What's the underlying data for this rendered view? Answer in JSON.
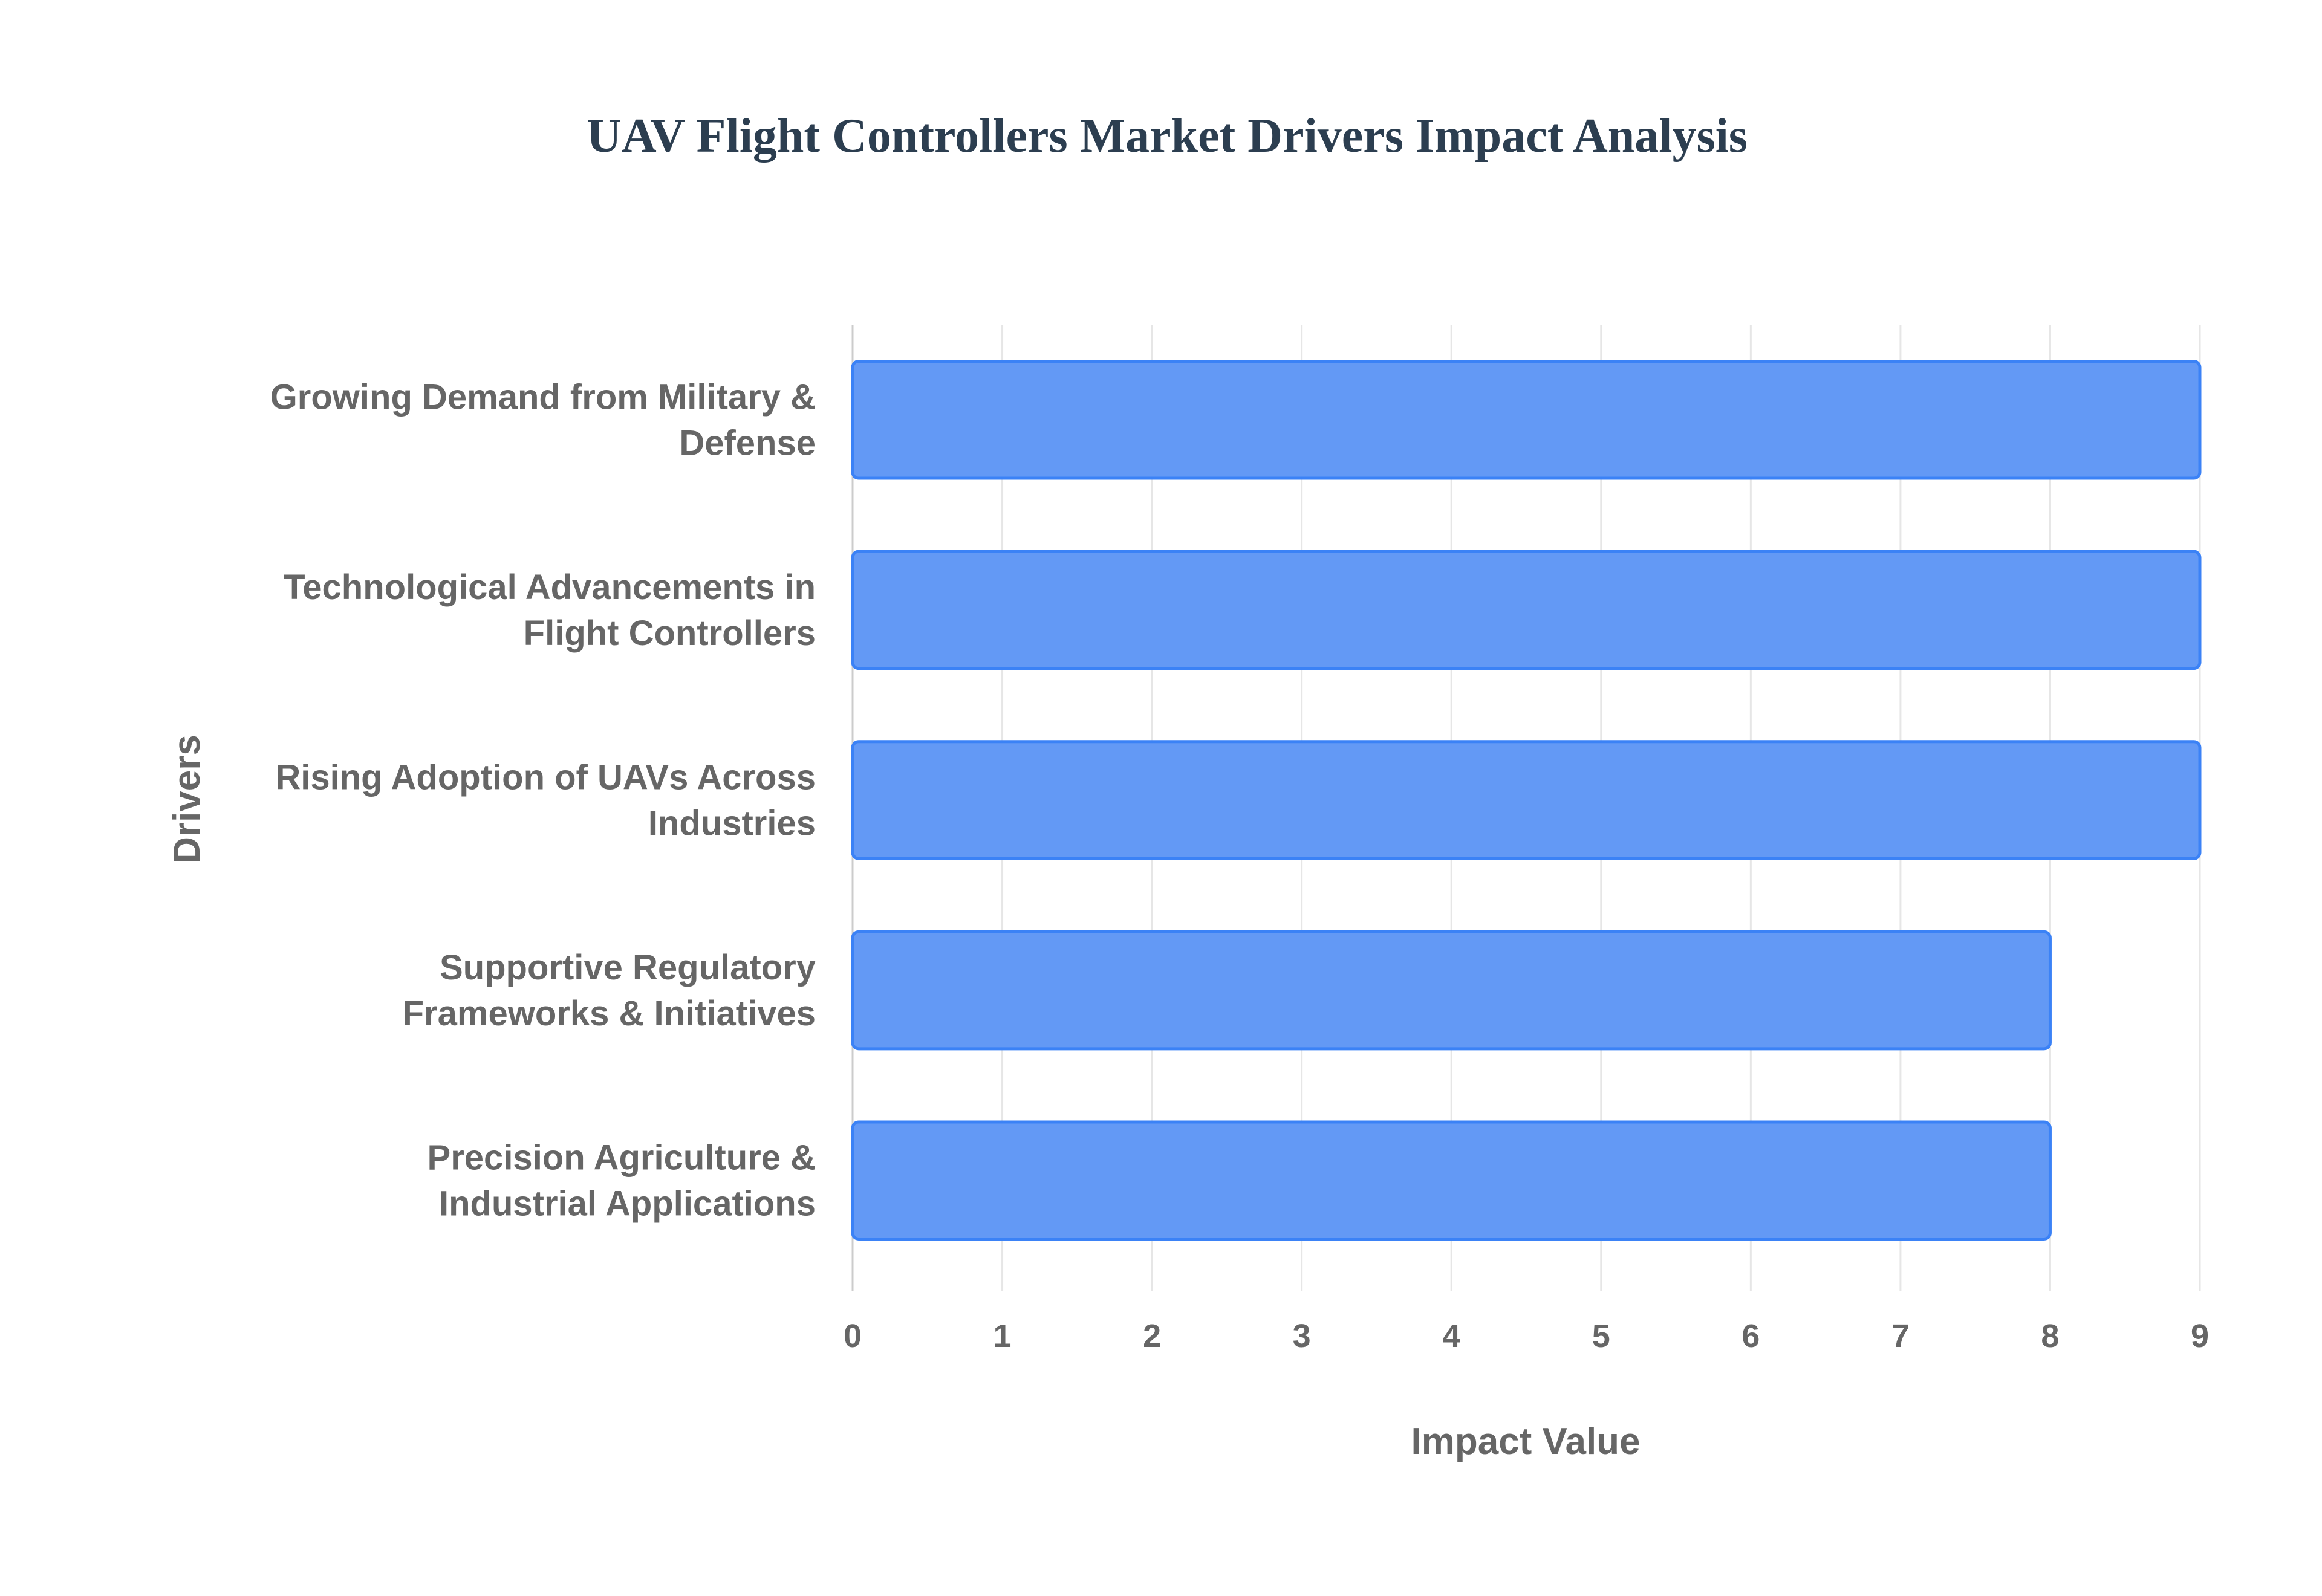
{
  "chart_data": {
    "type": "bar",
    "orientation": "horizontal",
    "title": "UAV Flight Controllers Market Drivers Impact Analysis",
    "xlabel": "Impact Value",
    "ylabel": "Drivers",
    "categories": [
      [
        "Growing Demand from Military &",
        "Defense"
      ],
      [
        "Technological Advancements in",
        "Flight Controllers"
      ],
      [
        "Rising Adoption of UAVs Across",
        "Industries"
      ],
      [
        "Supportive Regulatory",
        "Frameworks & Initiatives"
      ],
      [
        "Precision Agriculture &",
        "Industrial Applications"
      ]
    ],
    "values": [
      9,
      9,
      9,
      8,
      8
    ],
    "xlim": [
      0,
      9
    ],
    "xticks": [
      "0",
      "1",
      "2",
      "3",
      "4",
      "5",
      "6",
      "7",
      "8",
      "9"
    ],
    "grid": true,
    "colors": {
      "bar_fill": "#6399f5",
      "bar_border": "#3b82f6",
      "title": "#2c3e50",
      "text": "#666666"
    }
  }
}
